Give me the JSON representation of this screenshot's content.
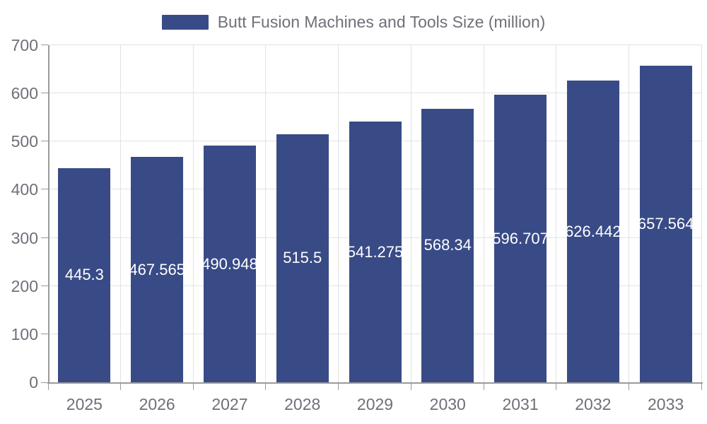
{
  "chart_data": {
    "type": "bar",
    "title": "",
    "legend": "Butt Fusion Machines and Tools Size (million)",
    "categories": [
      "2025",
      "2026",
      "2027",
      "2028",
      "2029",
      "2030",
      "2031",
      "2032",
      "2033"
    ],
    "series": [
      {
        "name": "Butt Fusion Machines and Tools Size (million)",
        "values": [
          445.3,
          467.565,
          490.948,
          515.5,
          541.275,
          568.34,
          596.707,
          626.442,
          657.564
        ]
      }
    ],
    "value_labels": [
      "445.3",
      "467.565",
      "490.948",
      "515.5",
      "541.275",
      "568.34",
      "596.707",
      "626.442",
      "657.564"
    ],
    "xlabel": "",
    "ylabel": "",
    "ylim": [
      0,
      700
    ],
    "yticks": [
      0,
      100,
      200,
      300,
      400,
      500,
      600,
      700
    ],
    "grid": true,
    "legend_position": "top",
    "colors": {
      "bar": "#394B86",
      "grid": "#E2E2E2",
      "axis": "#9A9A9A",
      "text": "#6E7079",
      "bar_label": "#FFFFFF",
      "background": "#FFFFFF"
    }
  }
}
